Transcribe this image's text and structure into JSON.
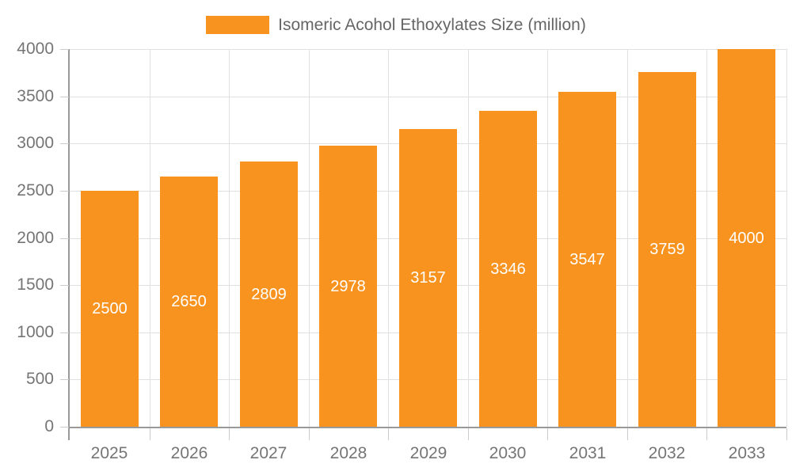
{
  "legend": {
    "label": "Isomeric Acohol Ethoxylates Size (million)"
  },
  "chart_data": {
    "type": "bar",
    "title": "Isomeric Acohol Ethoxylates Size (million)",
    "categories": [
      "2025",
      "2026",
      "2027",
      "2028",
      "2029",
      "2030",
      "2031",
      "2032",
      "2033"
    ],
    "values": [
      2500,
      2650,
      2809,
      2978,
      3157,
      3346,
      3547,
      3759,
      4000
    ],
    "xlabel": "",
    "ylabel": "",
    "ylim": [
      0,
      4000
    ],
    "yticks": [
      0,
      500,
      1000,
      1500,
      2000,
      2500,
      3000,
      3500,
      4000
    ],
    "grid": true,
    "legend_position": "top-center",
    "colors": {
      "bar": "#f7931e",
      "value_label": "#ffffff",
      "gridline": "#e0e0e0",
      "axis_line": "#999999",
      "tick_mark": "#cccccc",
      "tick_label": "#757575",
      "legend_text": "#666666"
    }
  }
}
